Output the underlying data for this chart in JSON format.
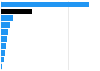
{
  "values": [
    262,
    92,
    35,
    27,
    22,
    18,
    15,
    13,
    10,
    4
  ],
  "bar_colors": [
    "#2196f3",
    "#000000",
    "#2196f3",
    "#2196f3",
    "#2196f3",
    "#2196f3",
    "#2196f3",
    "#2196f3",
    "#2196f3",
    "#2196f3"
  ],
  "background_color": "#ffffff",
  "grid_color": "#e0e0e0",
  "xlim": [
    0,
    290
  ],
  "figsize": [
    1.0,
    0.71
  ],
  "dpi": 100,
  "bar_height": 0.75,
  "n_bars": 10
}
